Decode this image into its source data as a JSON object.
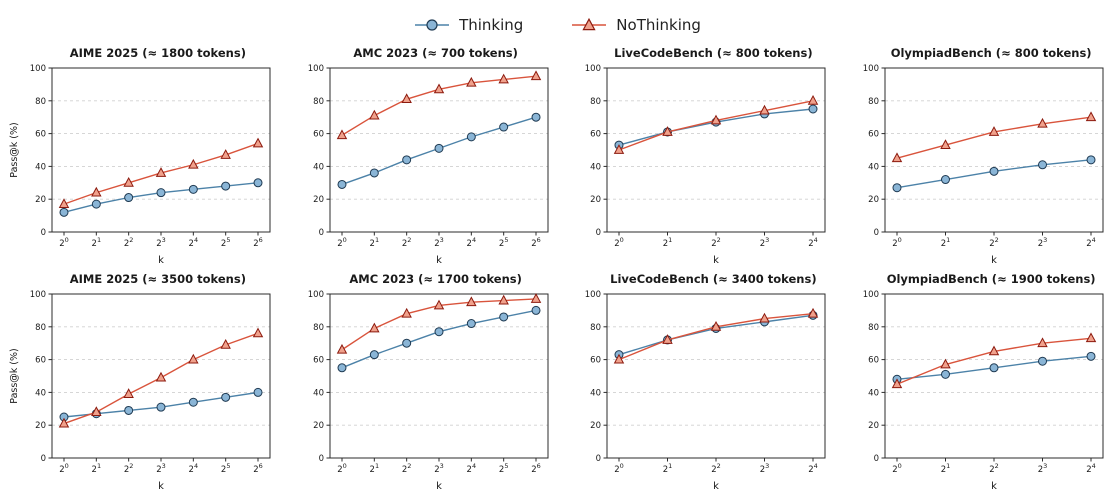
{
  "legend": {
    "series": [
      {
        "label": "Thinking",
        "marker": "circle",
        "line_color": "#4c82a8",
        "marker_fill": "#8ab5d6",
        "marker_edge": "#1f3a52"
      },
      {
        "label": "NoThinking",
        "marker": "triangle",
        "line_color": "#d9543c",
        "marker_fill": "#f0a18c",
        "marker_edge": "#8c1a0e"
      }
    ]
  },
  "axes": {
    "xlabel": "k",
    "ylabel": "Pass@k (%)",
    "x_base": "2",
    "yticks": [
      0,
      20,
      40,
      60,
      80,
      100
    ],
    "ylim": [
      0,
      100
    ],
    "grid": "dashed-horizontal",
    "grid_color": "#d0d0d0",
    "frame_color": "#2b2b2b"
  },
  "chart_data": [
    {
      "type": "line",
      "title": "AIME 2025 (≈ 1800 tokens)",
      "show_ylabel": true,
      "x_tick_labels": [
        "2^0",
        "2^1",
        "2^2",
        "2^3",
        "2^4",
        "2^5",
        "2^6"
      ],
      "x_exponents": [
        0,
        1,
        2,
        3,
        4,
        5,
        6
      ],
      "ylim": [
        0,
        100
      ],
      "series": [
        {
          "name": "Thinking",
          "values": [
            12,
            17,
            21,
            24,
            26,
            28,
            30
          ]
        },
        {
          "name": "NoThinking",
          "values": [
            17,
            24,
            30,
            36,
            41,
            47,
            54
          ]
        }
      ]
    },
    {
      "type": "line",
      "title": "AMC 2023 (≈ 700 tokens)",
      "show_ylabel": false,
      "x_tick_labels": [
        "2^0",
        "2^1",
        "2^2",
        "2^3",
        "2^4",
        "2^5",
        "2^6"
      ],
      "x_exponents": [
        0,
        1,
        2,
        3,
        4,
        5,
        6
      ],
      "ylim": [
        0,
        100
      ],
      "series": [
        {
          "name": "Thinking",
          "values": [
            29,
            36,
            44,
            51,
            58,
            64,
            70
          ]
        },
        {
          "name": "NoThinking",
          "values": [
            59,
            71,
            81,
            87,
            91,
            93,
            95
          ]
        }
      ]
    },
    {
      "type": "line",
      "title": "LiveCodeBench (≈ 800 tokens)",
      "show_ylabel": false,
      "x_tick_labels": [
        "2^0",
        "2^1",
        "2^2",
        "2^3",
        "2^4"
      ],
      "x_exponents": [
        0,
        1,
        2,
        3,
        4
      ],
      "ylim": [
        0,
        100
      ],
      "series": [
        {
          "name": "Thinking",
          "values": [
            53,
            61,
            67,
            72,
            75
          ]
        },
        {
          "name": "NoThinking",
          "values": [
            50,
            61,
            68,
            74,
            80
          ]
        }
      ]
    },
    {
      "type": "line",
      "title": "OlympiadBench (≈ 800 tokens)",
      "show_ylabel": false,
      "x_tick_labels": [
        "2^0",
        "2^1",
        "2^2",
        "2^3",
        "2^4"
      ],
      "x_exponents": [
        0,
        1,
        2,
        3,
        4
      ],
      "ylim": [
        0,
        100
      ],
      "series": [
        {
          "name": "Thinking",
          "values": [
            27,
            32,
            37,
            41,
            44
          ]
        },
        {
          "name": "NoThinking",
          "values": [
            45,
            53,
            61,
            66,
            70
          ]
        }
      ]
    },
    {
      "type": "line",
      "title": "AIME 2025 (≈ 3500 tokens)",
      "show_ylabel": true,
      "x_tick_labels": [
        "2^0",
        "2^1",
        "2^2",
        "2^3",
        "2^4",
        "2^5",
        "2^6"
      ],
      "x_exponents": [
        0,
        1,
        2,
        3,
        4,
        5,
        6
      ],
      "ylim": [
        0,
        100
      ],
      "series": [
        {
          "name": "Thinking",
          "values": [
            25,
            27,
            29,
            31,
            34,
            37,
            40
          ]
        },
        {
          "name": "NoThinking",
          "values": [
            21,
            28,
            39,
            49,
            60,
            69,
            76
          ]
        }
      ]
    },
    {
      "type": "line",
      "title": "AMC 2023 (≈ 1700 tokens)",
      "show_ylabel": false,
      "x_tick_labels": [
        "2^0",
        "2^1",
        "2^2",
        "2^3",
        "2^4",
        "2^5",
        "2^6"
      ],
      "x_exponents": [
        0,
        1,
        2,
        3,
        4,
        5,
        6
      ],
      "ylim": [
        0,
        100
      ],
      "series": [
        {
          "name": "Thinking",
          "values": [
            55,
            63,
            70,
            77,
            82,
            86,
            90
          ]
        },
        {
          "name": "NoThinking",
          "values": [
            66,
            79,
            88,
            93,
            95,
            96,
            97
          ]
        }
      ]
    },
    {
      "type": "line",
      "title": "LiveCodeBench (≈ 3400 tokens)",
      "show_ylabel": false,
      "x_tick_labels": [
        "2^0",
        "2^1",
        "2^2",
        "2^3",
        "2^4"
      ],
      "x_exponents": [
        0,
        1,
        2,
        3,
        4
      ],
      "ylim": [
        0,
        100
      ],
      "series": [
        {
          "name": "Thinking",
          "values": [
            63,
            72,
            79,
            83,
            87
          ]
        },
        {
          "name": "NoThinking",
          "values": [
            60,
            72,
            80,
            85,
            88
          ]
        }
      ]
    },
    {
      "type": "line",
      "title": "OlympiadBench (≈ 1900 tokens)",
      "show_ylabel": false,
      "x_tick_labels": [
        "2^0",
        "2^1",
        "2^2",
        "2^3",
        "2^4"
      ],
      "x_exponents": [
        0,
        1,
        2,
        3,
        4
      ],
      "ylim": [
        0,
        100
      ],
      "series": [
        {
          "name": "Thinking",
          "values": [
            48,
            51,
            55,
            59,
            62
          ]
        },
        {
          "name": "NoThinking",
          "values": [
            45,
            57,
            65,
            70,
            73
          ]
        }
      ]
    }
  ]
}
